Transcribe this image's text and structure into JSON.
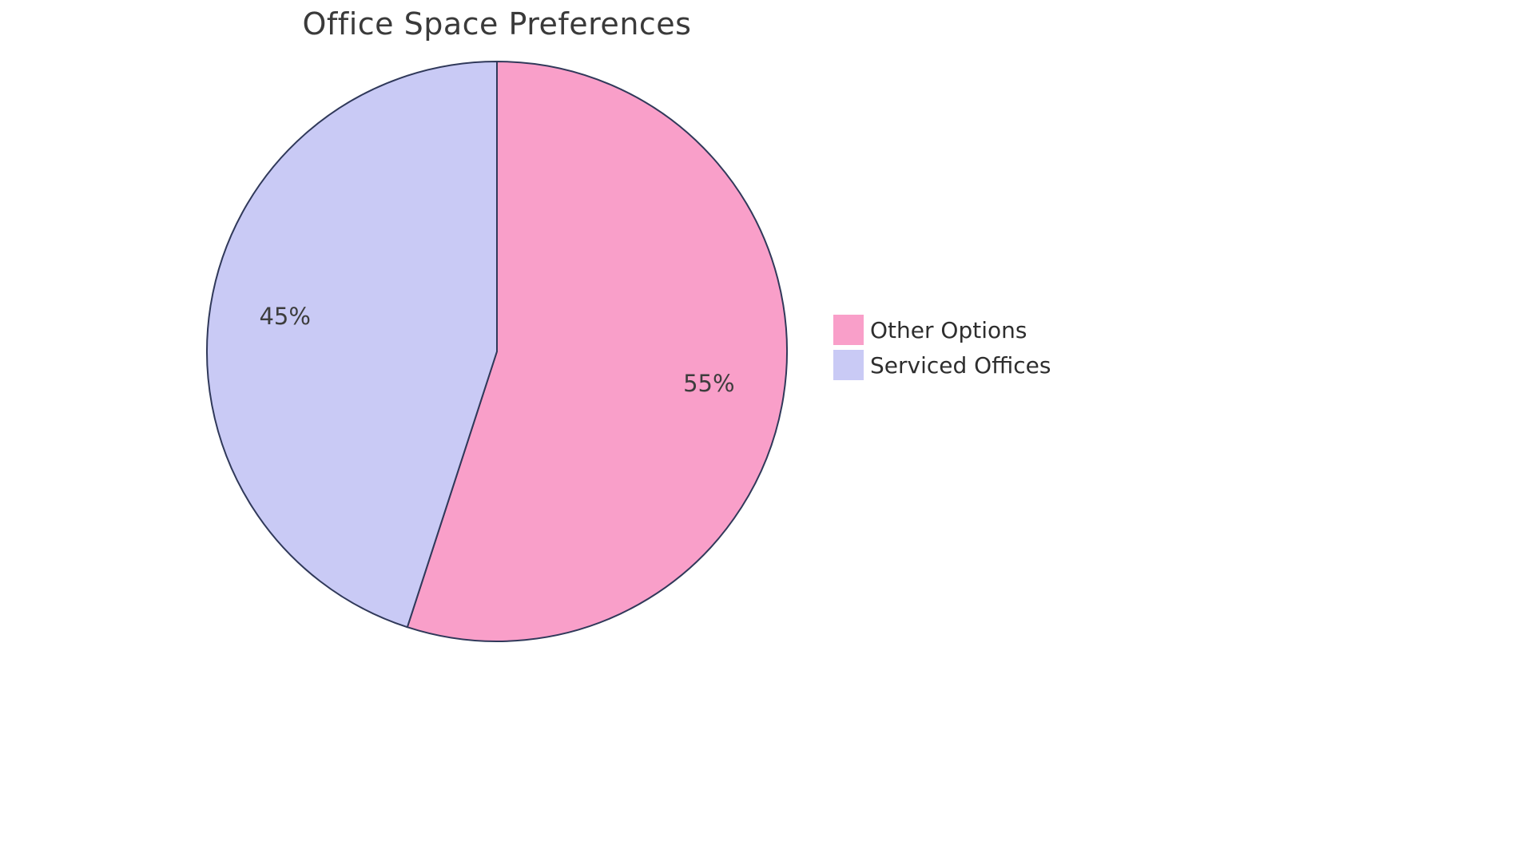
{
  "chart_data": {
    "type": "pie",
    "title": "Office Space Preferences",
    "slices": [
      {
        "label": "Other Options",
        "value": 55,
        "pct_label": "55%",
        "color": "#F99FC9"
      },
      {
        "label": "Serviced Offices",
        "value": 45,
        "pct_label": "45%",
        "color": "#C9CAF5"
      }
    ],
    "start_angle_deg": 0,
    "direction": "clockwise",
    "stroke_color": "#30395A",
    "stroke_width": 2,
    "label_color": "#3d3d3d",
    "title_color": "#3a3a3a",
    "legend_position": "right",
    "background": "#FFFFFF"
  }
}
